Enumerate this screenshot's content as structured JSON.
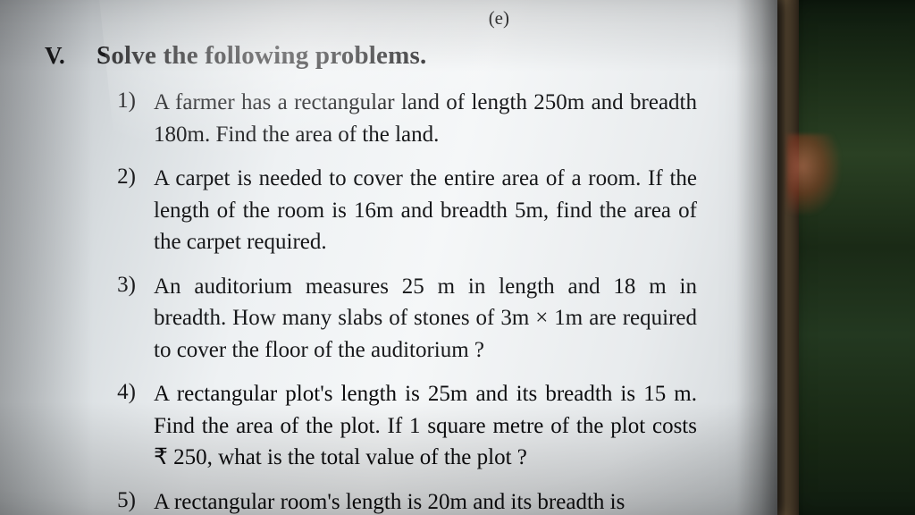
{
  "colors": {
    "paper_light": "#f5f7f8",
    "paper_mid": "#d8dde0",
    "paper_shadow": "#b8bcc0",
    "text": "#1a1a1c",
    "text_dark": "#0c0c0e",
    "background_side": "#1a2818",
    "wood_edge": "#5a4a34"
  },
  "typography": {
    "body_fontsize_pt": 19,
    "heading_fontsize_pt": 22,
    "font_family": "Times New Roman, serif",
    "line_height": 1.42,
    "text_align": "justify"
  },
  "marker": "(e)",
  "section": {
    "roman": "V.",
    "title": "Solve the following problems."
  },
  "problems": [
    {
      "num": "1)",
      "text": "A farmer has a rectangular land of length 250m and breadth 180m. Find the area of the land."
    },
    {
      "num": "2)",
      "text": "A carpet is needed to cover the entire area of a room. If the length of the room is 16m and breadth 5m, find the area of the carpet required."
    },
    {
      "num": "3)",
      "text": "An auditorium measures 25 m in length and 18 m in breadth. How many slabs of stones of 3m × 1m are required to cover the floor of the auditorium ?"
    },
    {
      "num": "4)",
      "text": "A rectangular plot's length is 25m and its breadth is 15 m. Find the area of the plot. If 1 square metre of the plot costs ₹ 250, what is the total value of the plot ?"
    },
    {
      "num": "5)",
      "text": "A rectangular room's length is 20m and its breadth is"
    }
  ]
}
